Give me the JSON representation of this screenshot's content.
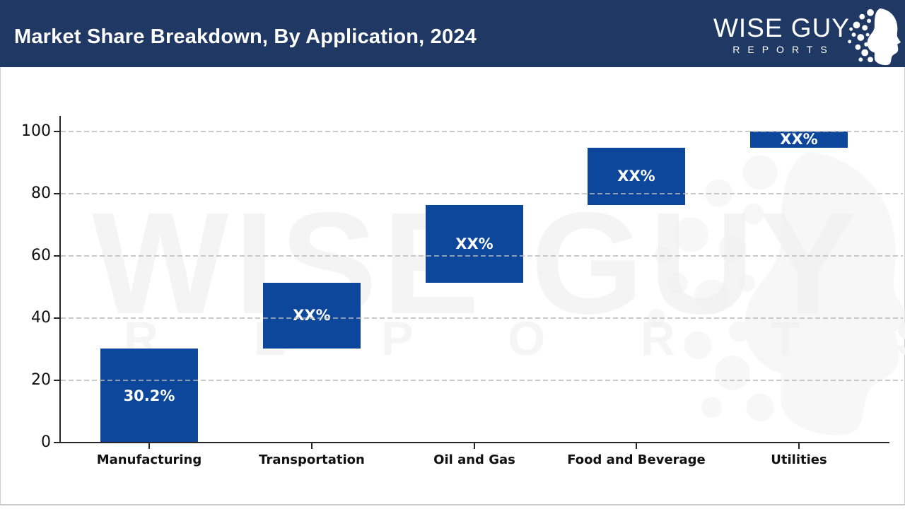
{
  "header": {
    "title": "Market Share Breakdown, By Application, 2024",
    "logo": {
      "line1": "WISE GUY",
      "line2": "REPORTS"
    }
  },
  "watermark": {
    "line1": "WISE GUY",
    "line2": "REPORTS"
  },
  "chart_data": {
    "type": "bar",
    "subtype": "waterfall",
    "title": "Market Share Breakdown, By Application, 2024",
    "categories": [
      "Manufacturing",
      "Transportation",
      "Oil and Gas",
      "Food and Beverage",
      "Utilities"
    ],
    "segments": [
      {
        "category": "Manufacturing",
        "start": 0,
        "end": 30.2,
        "increment": 30.2,
        "label": "30.2%"
      },
      {
        "category": "Transportation",
        "start": 30.2,
        "end": 51.4,
        "increment": 21.2,
        "label": "XX%"
      },
      {
        "category": "Oil and Gas",
        "start": 51.4,
        "end": 76.4,
        "increment": 25.0,
        "label": "XX%"
      },
      {
        "category": "Food and Beverage",
        "start": 76.4,
        "end": 94.8,
        "increment": 18.4,
        "label": "XX%"
      },
      {
        "category": "Utilities",
        "start": 94.8,
        "end": 100.0,
        "increment": 5.2,
        "label": "XX%"
      }
    ],
    "yticks": [
      0,
      20,
      40,
      60,
      80,
      100
    ],
    "ylim": [
      0,
      105
    ],
    "xlabel": "",
    "ylabel": "",
    "grid": "horizontal-dashed-above-bars",
    "legend": "none",
    "bar_color": "#0c479c"
  },
  "colors": {
    "header_bg": "#1f3864",
    "bar": "#0c479c",
    "bar_label_text": "#ffffff",
    "axis": "#262626",
    "gridline": "#bbbbbb",
    "watermark": "#f4f4f4",
    "card_border": "#cccccc"
  }
}
